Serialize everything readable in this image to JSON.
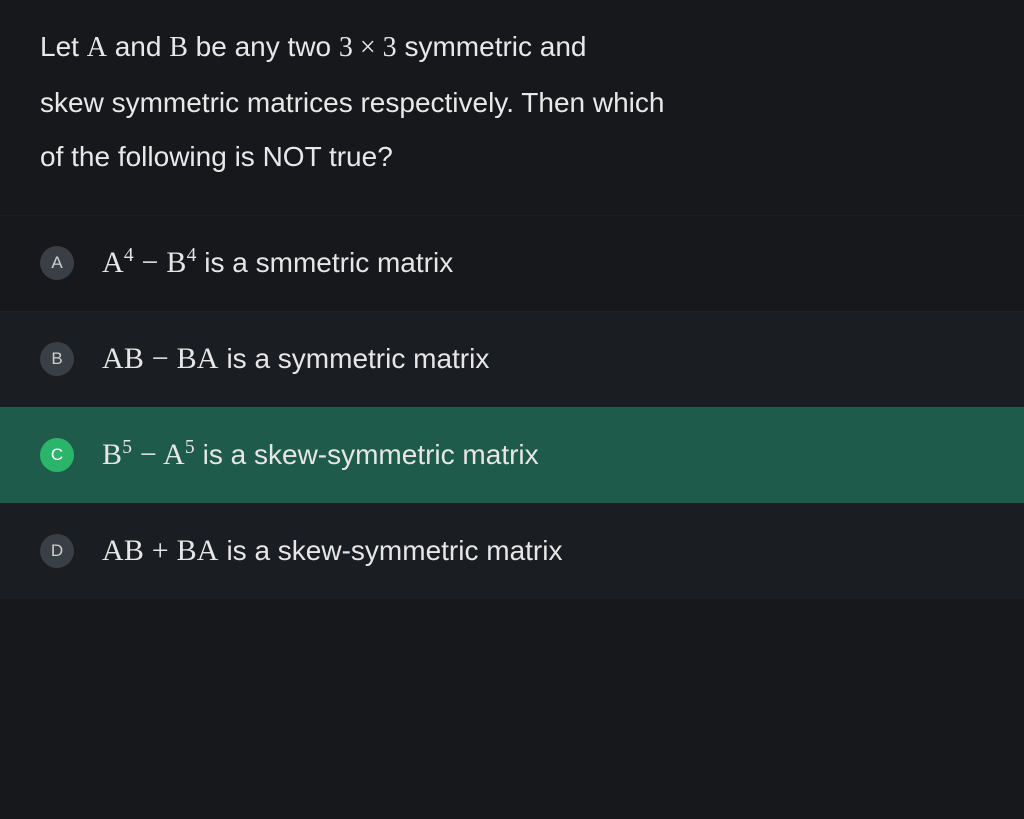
{
  "question": {
    "line1_pre": "Let ",
    "line1_A": "A",
    "line1_mid1": " and ",
    "line1_B": "B",
    "line1_mid2": " be any two ",
    "line1_dim": "3 × 3",
    "line1_post": " symmetric and",
    "line2": "skew symmetric matrices respectively. Then which",
    "line3": "of the following is NOT true?"
  },
  "options": {
    "a": {
      "letter": "A",
      "math": "A",
      "sup1": "4",
      "mid": " − B",
      "sup2": "4",
      "rest": " is a smmetric matrix",
      "selected": false
    },
    "b": {
      "letter": "B",
      "math": "AB − BA",
      "rest": " is a symmetric matrix",
      "selected": false
    },
    "c": {
      "letter": "C",
      "math": "B",
      "sup1": "5",
      "mid": " − A",
      "sup2": "5",
      "rest": " is a skew-symmetric matrix",
      "selected": true
    },
    "d": {
      "letter": "D",
      "math": "AB + BA",
      "rest": " is a skew-symmetric matrix",
      "selected": false
    }
  },
  "colors": {
    "background": "#16181c",
    "alt_row": "#1a1d21",
    "selected_bg": "#1f5b4a",
    "badge_bg": "#3a3f45",
    "badge_selected": "#2bb56a",
    "text": "#e6e6e6"
  }
}
